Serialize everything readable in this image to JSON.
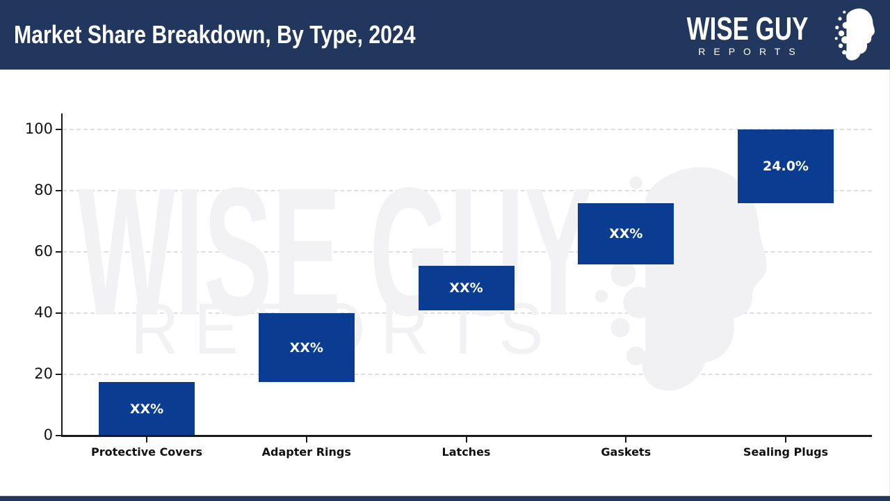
{
  "header": {
    "title": "Market Share Breakdown, By Type, 2024",
    "logo": {
      "line1": "WISE GUY",
      "line2": "REPORTS"
    }
  },
  "watermark": {
    "line1": "WISE GUY",
    "line2": "REPORTS"
  },
  "colors": {
    "header_bg": "#22375E",
    "bar": "#0A3D91",
    "bar_label": "#ffffff",
    "grid": "#dedede",
    "axis": "#1a1a1a",
    "watermark": "#f2f2f4",
    "footer_bg": "#22375E"
  },
  "chart_data": {
    "type": "bar",
    "subtype": "floating-waterfall",
    "title": "Market Share Breakdown, By Type, 2024",
    "xlabel": "",
    "ylabel": "",
    "categories": [
      "Protective Covers",
      "Adapter Rings",
      "Latches",
      "Gaskets",
      "Sealing Plugs"
    ],
    "bars": [
      {
        "category": "Protective Covers",
        "start": 0,
        "end": 17.5,
        "label": "XX%"
      },
      {
        "category": "Adapter Rings",
        "start": 17.5,
        "end": 40,
        "label": "XX%"
      },
      {
        "category": "Latches",
        "start": 41,
        "end": 55.5,
        "label": "XX%"
      },
      {
        "category": "Gaskets",
        "start": 56,
        "end": 76,
        "label": "XX%"
      },
      {
        "category": "Sealing Plugs",
        "start": 76,
        "end": 100,
        "label": "24.0%"
      }
    ],
    "yticks": [
      0,
      20,
      40,
      60,
      80,
      100
    ],
    "ylim": [
      0,
      105
    ],
    "grid": "horizontal-dashed",
    "legend": "none",
    "bar_color": "#0A3D91",
    "value_label_color": "#ffffff"
  }
}
